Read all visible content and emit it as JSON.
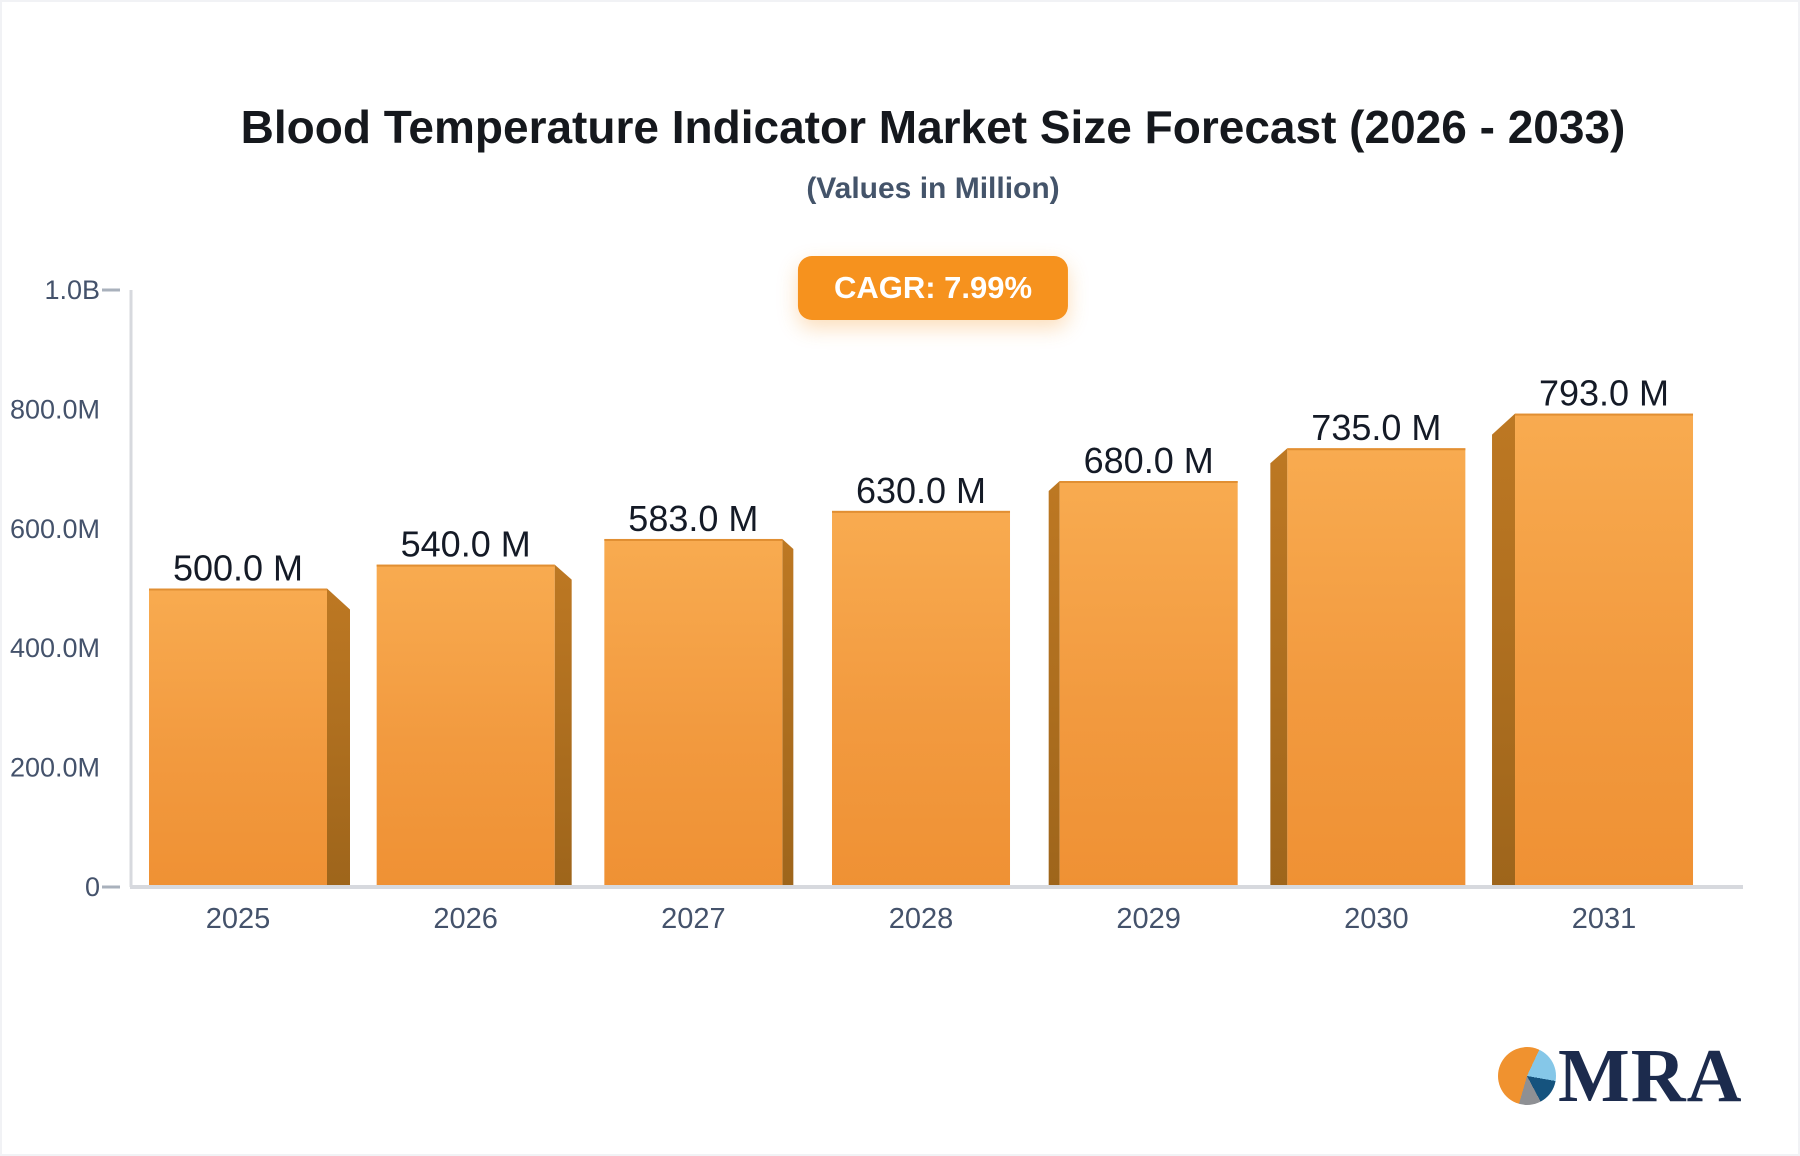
{
  "page": {
    "background": "#ffffff"
  },
  "header": {
    "title": "Blood Temperature Indicator Market Size Forecast (2026 - 2033)",
    "subtitle": "(Values in Million)",
    "cagr_badge": "CAGR: 7.99%",
    "badge_color": "#f6921e"
  },
  "chart_data": {
    "type": "bar",
    "title": "Blood Temperature Indicator Market Size Forecast (2026 - 2033)",
    "subtitle": "(Values in Million)",
    "categories": [
      "2025",
      "2026",
      "2027",
      "2028",
      "2029",
      "2030",
      "2031"
    ],
    "values": [
      500,
      540,
      583,
      630,
      680,
      735,
      793
    ],
    "value_labels": [
      "500.0 M",
      "540.0 M",
      "583.0 M",
      "630.0 M",
      "680.0 M",
      "735.0 M",
      "793.0 M"
    ],
    "unit_suffix": "M",
    "cagr": "7.99%",
    "xlabel": "",
    "ylabel": "",
    "ylim": [
      0,
      1000
    ],
    "yticks": [
      {
        "label": "1.0B",
        "value": 1000
      },
      {
        "label": "800.0M",
        "value": 800
      },
      {
        "label": "600.0M",
        "value": 600
      },
      {
        "label": "400.0M",
        "value": 400
      },
      {
        "label": "200.0M",
        "value": 200
      },
      {
        "label": "0",
        "value": 0
      }
    ],
    "grid": false,
    "legend": false,
    "bar_style": "3d",
    "colors": {
      "bar_face_top": "#f8ab50",
      "bar_face_mid": "#f29a3f",
      "bar_face_bottom": "#ef9134",
      "bar_side_top": "#bd7823",
      "bar_side_bottom": "#9e651b",
      "bar_top_edge": "#e18f33",
      "axis_line": "#d7d9de",
      "tick": "#a9b1bc",
      "axis_label": "#44526b",
      "value_label": "#141a26"
    }
  },
  "branding": {
    "logo_text": "MRA",
    "pie_icon_colors": [
      "#f0922f",
      "#85c7e8",
      "#15537e",
      "#8e9094"
    ]
  }
}
